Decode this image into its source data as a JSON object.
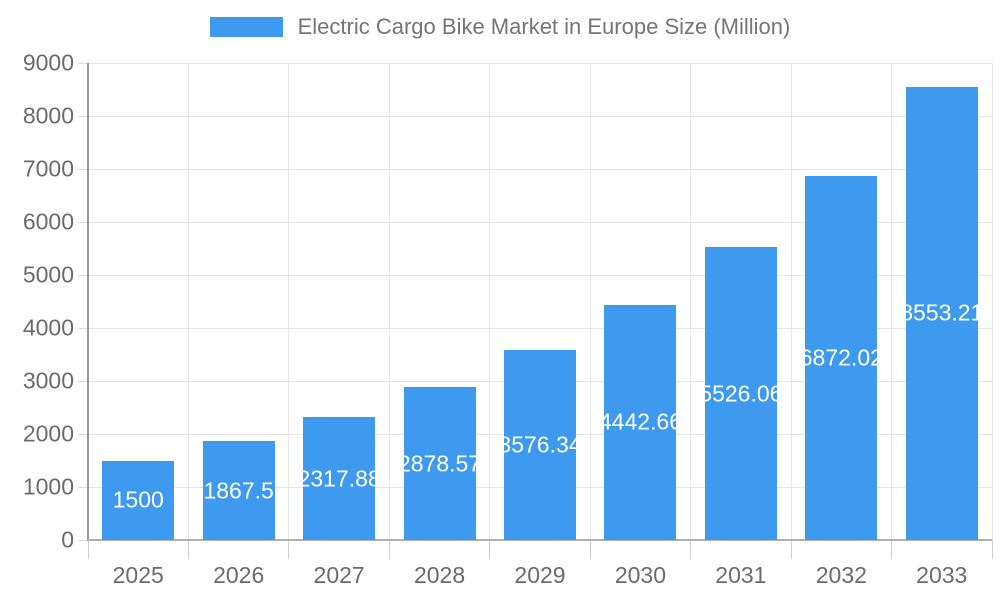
{
  "chart_data": {
    "type": "bar",
    "title": "Electric Cargo Bike Market in Europe Size (Million)",
    "categories": [
      "2025",
      "2026",
      "2027",
      "2028",
      "2029",
      "2030",
      "2031",
      "2032",
      "2033"
    ],
    "values": [
      1500,
      1867.5,
      2317.88,
      2878.57,
      3576.34,
      4442.66,
      5526.06,
      6872.02,
      8553.21
    ],
    "value_labels": [
      "1500",
      "1867.5",
      "2317.88",
      "2878.57",
      "3576.34",
      "4442.66",
      "5526.06",
      "6872.02",
      "8553.21"
    ],
    "xlabel": "",
    "ylabel": "",
    "ylim": [
      0,
      9000
    ],
    "yticks": [
      0,
      1000,
      2000,
      3000,
      4000,
      5000,
      6000,
      7000,
      8000,
      9000
    ],
    "grid": "on",
    "legend_position": "top-center",
    "colors": {
      "bar": "#3D9AEF",
      "value_text": "#ffffff",
      "axis_text": "#6b6b6b",
      "legend_text": "#757575",
      "gridline": "#e6e6e6",
      "axis_line": "#9a9a9a",
      "background": "#ffffff"
    }
  }
}
